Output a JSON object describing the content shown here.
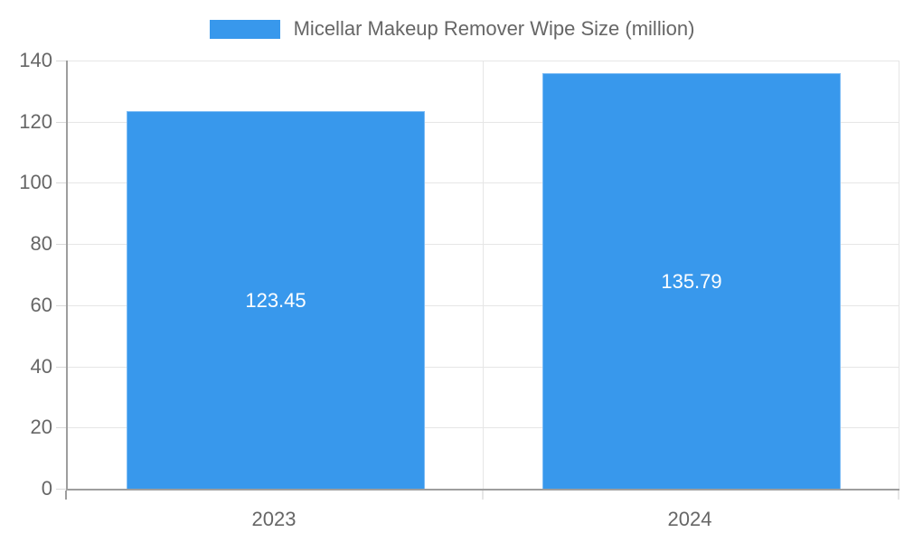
{
  "chart_data": {
    "type": "bar",
    "title": "Micellar Makeup Remover Wipe Size (million)",
    "legend": {
      "position": "top",
      "entries": [
        "Micellar Makeup Remover Wipe Size (million)"
      ]
    },
    "categories": [
      "2023",
      "2024"
    ],
    "values": [
      123.45,
      135.79
    ],
    "value_labels": [
      "123.45",
      "135.79"
    ],
    "series": [
      {
        "name": "Micellar Makeup Remover Wipe Size (million)",
        "values": [
          123.45,
          135.79
        ]
      }
    ],
    "xlabel": "",
    "ylabel": "",
    "ylim": [
      0,
      140
    ],
    "yticks": [
      0,
      20,
      40,
      60,
      80,
      100,
      120,
      140
    ],
    "grid": true,
    "colors": {
      "bar_fill": "#3898ec",
      "bar_border": "#7dbcf5",
      "value_label": "#ffffff",
      "axis_line": "#9e9e9e",
      "gridline": "#e6e6e6",
      "tick_mark": "#d9d9d9",
      "text": "#666666"
    }
  }
}
